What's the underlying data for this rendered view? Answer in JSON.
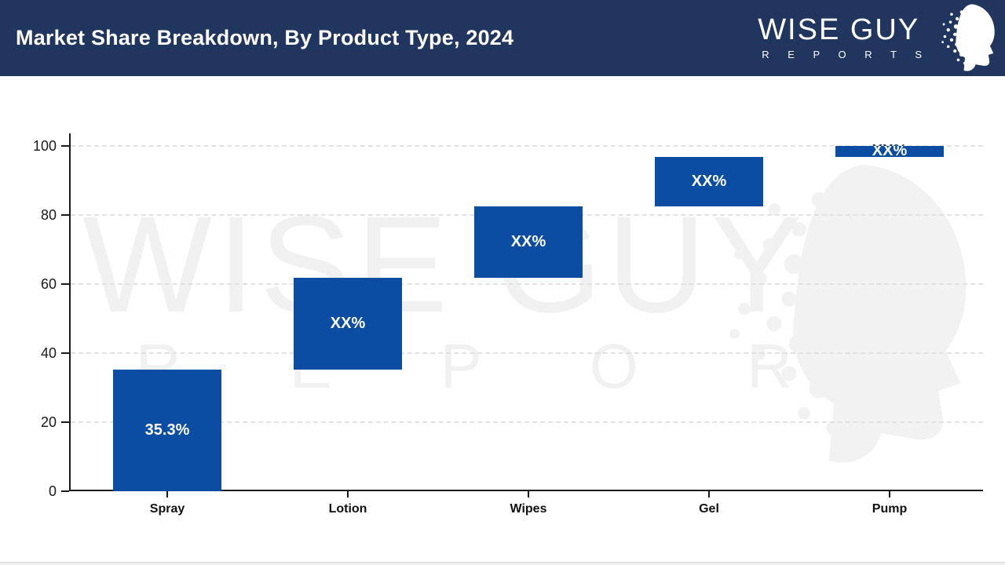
{
  "header": {
    "title": "Market Share Breakdown, By Product Type, 2024",
    "logo": {
      "line1": "WISE GUY",
      "line2": "R E P O R T S"
    }
  },
  "watermark": {
    "line1": "WISE GUY",
    "line2": "R E P O R T S"
  },
  "chart_data": {
    "type": "bar",
    "subtype": "waterfall",
    "title": "Market Share Breakdown, By Product Type, 2024",
    "categories": [
      "Spray",
      "Lotion",
      "Wipes",
      "Gel",
      "Pump"
    ],
    "segments": [
      {
        "category": "Spray",
        "start": 0,
        "end": 35.3,
        "label": "35.3%"
      },
      {
        "category": "Lotion",
        "start": 35.3,
        "end": 61.8,
        "label": "XX%"
      },
      {
        "category": "Wipes",
        "start": 61.8,
        "end": 82.4,
        "label": "XX%"
      },
      {
        "category": "Gel",
        "start": 82.4,
        "end": 96.9,
        "label": "XX%"
      },
      {
        "category": "Pump",
        "start": 96.9,
        "end": 100,
        "label": "XX%"
      }
    ],
    "xlabel": "",
    "ylabel": "",
    "ylim": [
      0,
      100
    ],
    "yticks": [
      0,
      20,
      40,
      60,
      80,
      100
    ],
    "grid": "horizontal-dashed",
    "legend": "none",
    "bar_color": "#0b4da2",
    "inside_label_color": "#ffffff",
    "outside_label_color": "#17366e"
  },
  "colors": {
    "header_bg": "#21365f",
    "axis": "#1a1a1a",
    "gridline": "#e2e2e2",
    "watermark": "#f1f1f1"
  }
}
